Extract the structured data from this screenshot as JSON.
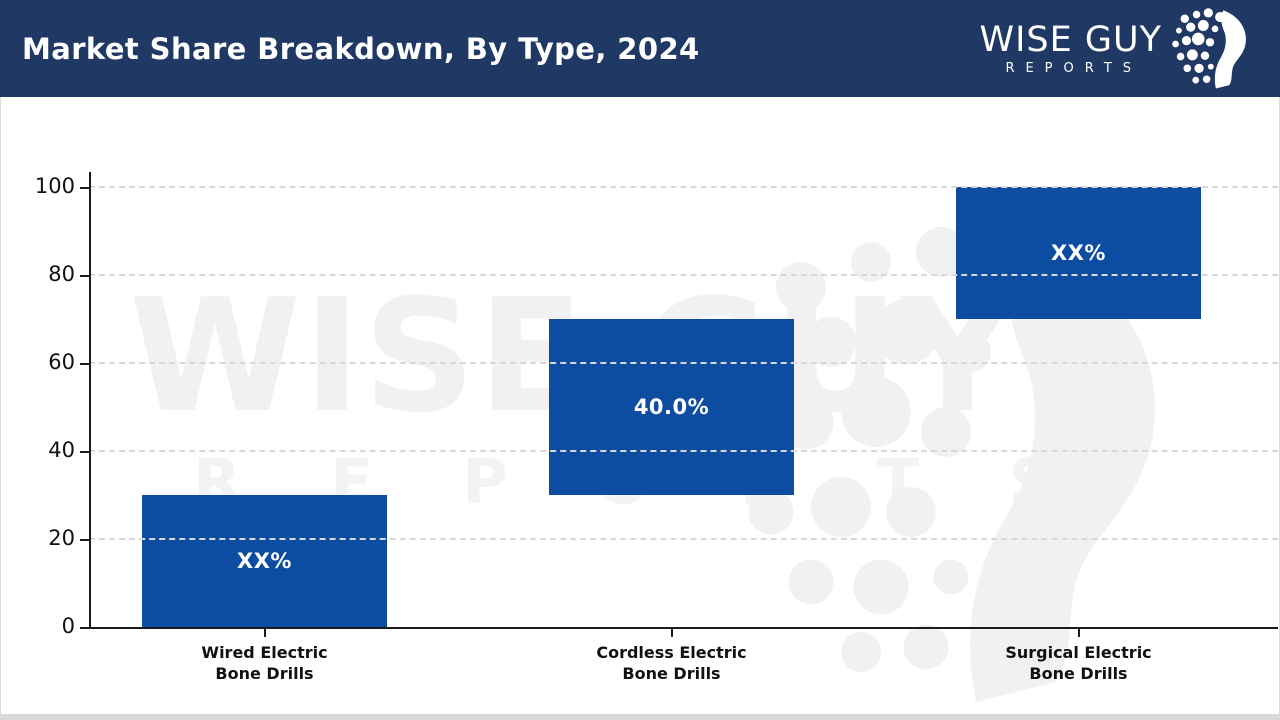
{
  "header": {
    "title": "Market Share Breakdown, By Type, 2024",
    "logo": {
      "name": "WISE GUY",
      "sub": "REPORTS"
    }
  },
  "watermark": {
    "name": "WISE GUY",
    "sub": "R E P O R T S"
  },
  "chart_data": {
    "type": "bar",
    "variant": "floating-waterfall",
    "title": "Market Share Breakdown, By Type, 2024",
    "xlabel": "",
    "ylabel": "",
    "categories": [
      "Wired Electric\nBone Drills",
      "Cordless Electric\nBone Drills",
      "Surgical Electric\nBone Drills"
    ],
    "bars": [
      {
        "category": "Wired Electric Bone Drills",
        "label": "XX%",
        "start": 0,
        "end": 30
      },
      {
        "category": "Cordless Electric Bone Drills",
        "label": "40.0%",
        "start": 30,
        "end": 70
      },
      {
        "category": "Surgical Electric Bone Drills",
        "label": "XX%",
        "start": 70,
        "end": 100
      }
    ],
    "yticks": [
      0,
      20,
      40,
      60,
      80,
      100
    ],
    "ylim": [
      0,
      105
    ],
    "grid": "horizontal-dashed-over-bars",
    "legend": "none",
    "colors": {
      "bar": "#0c4da2",
      "bar_label": "#ffffff",
      "header_bg": "#1f3864",
      "axis": "#1a1a1a",
      "gridline": "#d8d8d8",
      "watermark": "#f0f1f3",
      "footer_strip": "#d9d9d9"
    }
  }
}
